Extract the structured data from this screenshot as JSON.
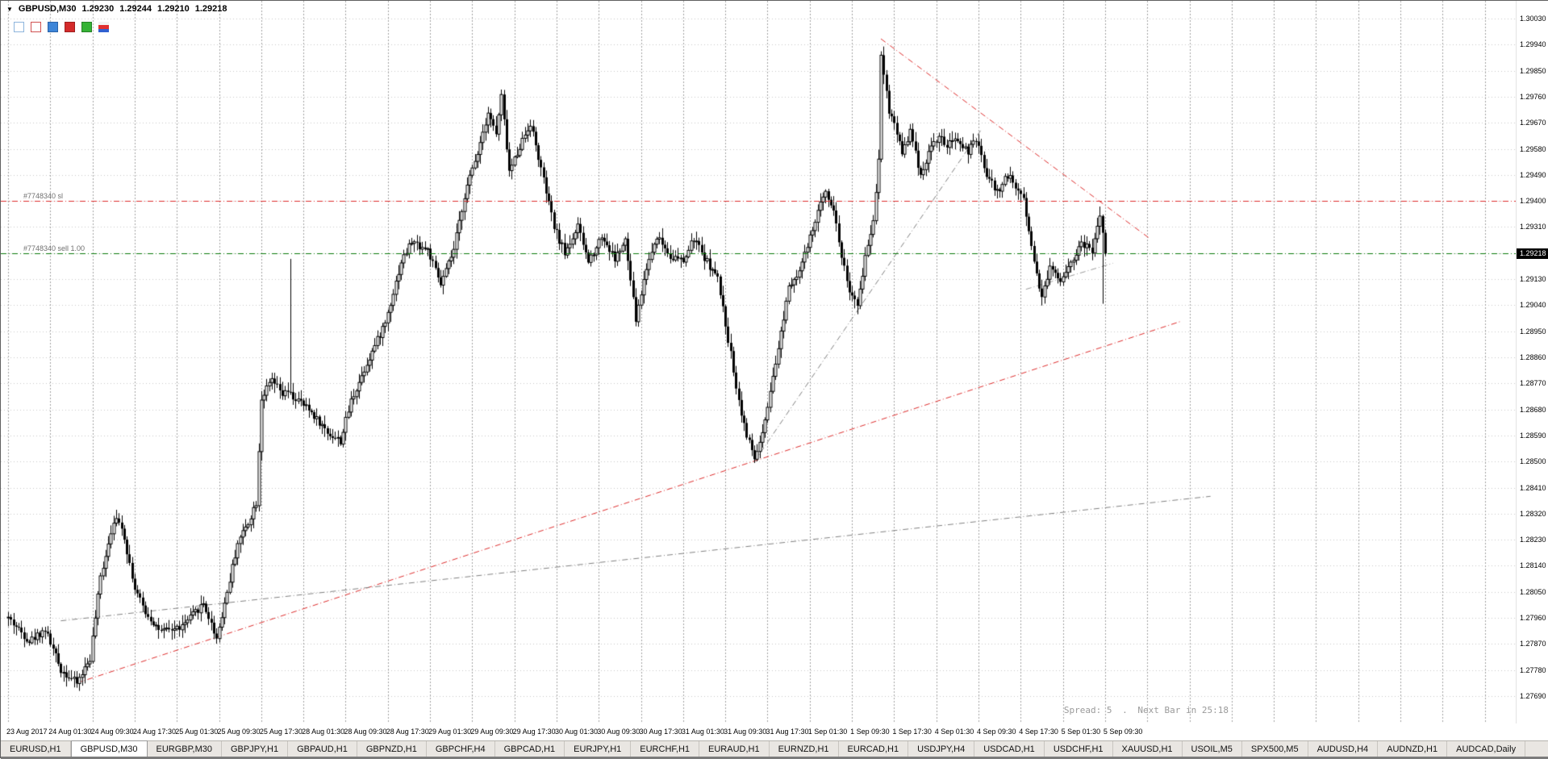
{
  "toolbar": {
    "swatches": [
      {
        "name": "empty-blue-rect",
        "fill": "#ffffff",
        "border": "#8cb4dc"
      },
      {
        "name": "empty-red-rect",
        "fill": "#ffffff",
        "border": "#d05050"
      },
      {
        "name": "blue-rect",
        "fill": "#3d85d8",
        "border": "#2a62a8"
      },
      {
        "name": "red-rect",
        "fill": "#d42a2a",
        "border": "#9e1f1f"
      },
      {
        "name": "green-rect",
        "fill": "#35b335",
        "border": "#268026"
      },
      {
        "name": "flag-icon",
        "stripes": [
          "#f2f2f2",
          "#e03030",
          "#3060d0"
        ]
      }
    ]
  },
  "status": {
    "spread": "Spread: 5",
    "separator": ".",
    "next_bar": "Next Bar in 25:18"
  },
  "tabs": {
    "active_index": 1,
    "items": [
      "EURUSD,H1",
      "GBPUSD,M30",
      "EURGBP,M30",
      "GBPJPY,H1",
      "GBPAUD,H1",
      "GBPNZD,H1",
      "GBPCHF,H4",
      "GBPCAD,H1",
      "EURJPY,H1",
      "EURCHF,H1",
      "EURAUD,H1",
      "EURNZD,H1",
      "EURCAD,H1",
      "USDJPY,H4",
      "USDCAD,H1",
      "USDCHF,H1",
      "XAUUSD,H1",
      "USOIL,M5",
      "SPX500,M5",
      "AUDUSD,H4",
      "AUDNZD,H1",
      "AUDCAD,Daily"
    ]
  },
  "chart_data": {
    "type": "candlestick",
    "symbol": "GBPUSD",
    "timeframe": "M30",
    "info": {
      "symbol": "GBPUSD,M30",
      "open": "1.29230",
      "high": "1.29244",
      "low": "1.29210",
      "close": "1.29218"
    },
    "price_badge": "1.29218",
    "current_price": 1.29218,
    "spread_points": 5,
    "y_axis": {
      "top": 1.3003,
      "bottom": 1.2769,
      "step": 0.0009,
      "labels": [
        "1.30030",
        "1.29940",
        "1.29850",
        "1.29760",
        "1.29670",
        "1.29580",
        "1.29490",
        "1.29400",
        "1.29310",
        "1.29220",
        "1.29130",
        "1.29040",
        "1.28950",
        "1.28860",
        "1.28770",
        "1.28680",
        "1.28590",
        "1.28500",
        "1.28410",
        "1.28320",
        "1.28230",
        "1.28140",
        "1.28050",
        "1.27960",
        "1.27870",
        "1.27780",
        "1.27690"
      ]
    },
    "x_axis": {
      "bars_per_label": 16,
      "labels": [
        "23 Aug 2017",
        "24 Aug 01:30",
        "24 Aug 09:30",
        "24 Aug 17:30",
        "25 Aug 01:30",
        "25 Aug 09:30",
        "25 Aug 17:30",
        "28 Aug 01:30",
        "28 Aug 09:30",
        "28 Aug 17:30",
        "29 Aug 01:30",
        "29 Aug 09:30",
        "29 Aug 17:30",
        "30 Aug 01:30",
        "30 Aug 09:30",
        "30 Aug 17:30",
        "31 Aug 01:30",
        "31 Aug 09:30",
        "31 Aug 17:30",
        "1 Sep 01:30",
        "1 Sep 09:30",
        "1 Sep 17:30",
        "4 Sep 01:30",
        "4 Sep 09:30",
        "4 Sep 17:30",
        "5 Sep 01:30",
        "5 Sep 09:30"
      ]
    },
    "bars_total": 417,
    "price_path": [
      [
        0,
        1.2796
      ],
      [
        8,
        1.2788
      ],
      [
        14,
        1.2792
      ],
      [
        20,
        1.2778
      ],
      [
        26,
        1.27735
      ],
      [
        31,
        1.2782
      ],
      [
        35,
        1.281
      ],
      [
        40,
        1.283
      ],
      [
        43,
        1.2828
      ],
      [
        48,
        1.2806
      ],
      [
        52,
        1.2798
      ],
      [
        58,
        1.2791
      ],
      [
        66,
        1.2793
      ],
      [
        74,
        1.2801
      ],
      [
        79,
        1.2789
      ],
      [
        83,
        1.2805
      ],
      [
        87,
        1.2822
      ],
      [
        91,
        1.2829
      ],
      [
        94,
        1.2836
      ],
      [
        96,
        1.2872
      ],
      [
        100,
        1.2878
      ],
      [
        104,
        1.2873
      ],
      [
        106,
        1.2874
      ],
      [
        108,
        1.2872
      ],
      [
        110,
        1.2871
      ],
      [
        115,
        1.2867
      ],
      [
        121,
        1.286
      ],
      [
        126,
        1.2857
      ],
      [
        130,
        1.2871
      ],
      [
        136,
        1.2884
      ],
      [
        143,
        1.2898
      ],
      [
        149,
        1.2919
      ],
      [
        153,
        1.2926
      ],
      [
        159,
        1.2923
      ],
      [
        164,
        1.2911
      ],
      [
        169,
        1.2923
      ],
      [
        173,
        1.2942
      ],
      [
        178,
        1.2957
      ],
      [
        182,
        1.2971
      ],
      [
        185,
        1.2963
      ],
      [
        187,
        1.2976
      ],
      [
        190,
        1.295
      ],
      [
        194,
        1.2959
      ],
      [
        198,
        1.2967
      ],
      [
        202,
        1.2951
      ],
      [
        207,
        1.2931
      ],
      [
        211,
        1.2922
      ],
      [
        216,
        1.2931
      ],
      [
        220,
        1.2919
      ],
      [
        225,
        1.2928
      ],
      [
        230,
        1.292
      ],
      [
        234,
        1.2926
      ],
      [
        238,
        1.2899
      ],
      [
        242,
        1.2917
      ],
      [
        246,
        1.2928
      ],
      [
        251,
        1.2921
      ],
      [
        256,
        1.2919
      ],
      [
        260,
        1.2927
      ],
      [
        265,
        1.2919
      ],
      [
        269,
        1.2913
      ],
      [
        274,
        1.2887
      ],
      [
        277,
        1.2871
      ],
      [
        280,
        1.2859
      ],
      [
        283,
        1.2851
      ],
      [
        286,
        1.2859
      ],
      [
        289,
        1.2873
      ],
      [
        292,
        1.2889
      ],
      [
        296,
        1.2911
      ],
      [
        300,
        1.2916
      ],
      [
        303,
        1.2924
      ],
      [
        307,
        1.2936
      ],
      [
        310,
        1.2944
      ],
      [
        313,
        1.2937
      ],
      [
        316,
        1.2921
      ],
      [
        319,
        1.2909
      ],
      [
        322,
        1.2903
      ],
      [
        325,
        1.2921
      ],
      [
        328,
        1.2933
      ],
      [
        330,
        1.2955
      ],
      [
        331,
        1.2991
      ],
      [
        334,
        1.2971
      ],
      [
        336,
        1.2967
      ],
      [
        339,
        1.2957
      ],
      [
        342,
        1.2964
      ],
      [
        346,
        1.2949
      ],
      [
        350,
        1.2959
      ],
      [
        353,
        1.2962
      ],
      [
        356,
        1.2959
      ],
      [
        360,
        1.2961
      ],
      [
        364,
        1.2957
      ],
      [
        367,
        1.2961
      ],
      [
        371,
        1.2949
      ],
      [
        375,
        1.2943
      ],
      [
        379,
        1.2949
      ],
      [
        382,
        1.2945
      ],
      [
        385,
        1.2941
      ],
      [
        389,
        1.2919
      ],
      [
        392,
        1.2907
      ],
      [
        395,
        1.2917
      ],
      [
        399,
        1.2913
      ],
      [
        403,
        1.2919
      ],
      [
        407,
        1.2925
      ],
      [
        411,
        1.2923
      ],
      [
        414,
        1.2935
      ],
      [
        416,
        1.29218
      ]
    ],
    "wick_spikes": [
      {
        "bar": 107,
        "high": 1.292
      },
      {
        "bar": 283,
        "low": 1.28495
      },
      {
        "bar": 415,
        "low": 1.29045
      }
    ],
    "levels": [
      {
        "name": "stop-loss",
        "label": "#7748340 sl",
        "price": 1.294,
        "color": "#dd2c2c",
        "style": "dashdot"
      },
      {
        "name": "sell-entry",
        "label": "#7748340 sell 1.00",
        "price": 1.29218,
        "color": "#0b7a0b",
        "style": "dashdot"
      }
    ],
    "trendlines": [
      {
        "name": "rising-support-red",
        "color": "#dd2c2c",
        "points": [
          [
            26,
            1.27735
          ],
          [
            445,
            1.28985
          ]
        ]
      },
      {
        "name": "falling-resistance-red",
        "color": "#dd2c2c",
        "points": [
          [
            331,
            1.2996
          ],
          [
            433,
            1.2927
          ]
        ]
      },
      {
        "name": "long-rising-gray",
        "color": "#808080",
        "points": [
          [
            20,
            1.2795
          ],
          [
            456,
            1.2838
          ]
        ]
      },
      {
        "name": "steep-rising-gray",
        "color": "#808080",
        "points": [
          [
            283,
            1.285
          ],
          [
            369,
            1.29646
          ]
        ]
      },
      {
        "name": "minor-support-gray",
        "color": "#999999",
        "points": [
          [
            386,
            1.29095
          ],
          [
            419,
            1.29185
          ]
        ]
      }
    ],
    "grid": {
      "visible": true,
      "v_color": "#a0a0a0",
      "h_color": "#c8c8c8"
    }
  }
}
